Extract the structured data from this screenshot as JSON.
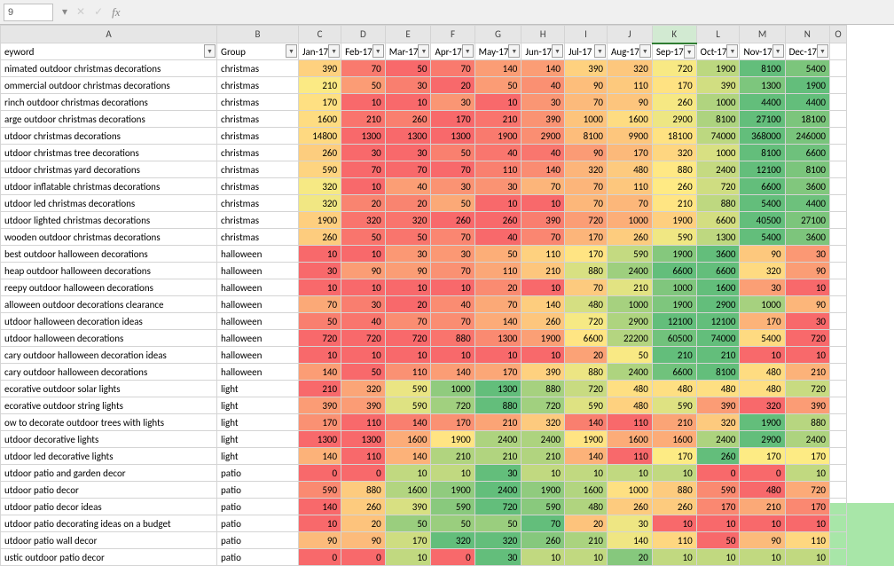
{
  "formula_bar": {
    "name_box": "9",
    "fx_label": "fx"
  },
  "col_letters": [
    "A",
    "B",
    "C",
    "D",
    "E",
    "F",
    "G",
    "H",
    "I",
    "J",
    "K",
    "L",
    "M",
    "N",
    "O"
  ],
  "selected_col": "K",
  "headers": {
    "keyword": "eyword",
    "group": "Group",
    "months": [
      "Jan-17",
      "Feb-17",
      "Mar-17",
      "Apr-17",
      "May-17",
      "Jun-17",
      "Jul-17",
      "Aug-17",
      "Sep-17",
      "Oct-17",
      "Nov-17",
      "Dec-17"
    ]
  },
  "heatmap_colors": {
    "stops": [
      {
        "t": 0.0,
        "c": "#f8696b"
      },
      {
        "t": 0.5,
        "c": "#ffeb84"
      },
      {
        "t": 1.0,
        "c": "#63be7b"
      }
    ]
  },
  "rows": [
    {
      "kw": "nimated outdoor christmas decorations",
      "grp": "christmas",
      "v": [
        390,
        70,
        50,
        70,
        140,
        140,
        390,
        320,
        720,
        1900,
        8100,
        5400
      ]
    },
    {
      "kw": "ommercial outdoor christmas decorations",
      "grp": "christmas",
      "v": [
        210,
        50,
        30,
        20,
        50,
        40,
        90,
        110,
        170,
        390,
        1300,
        1900
      ]
    },
    {
      "kw": "rinch outdoor christmas decorations",
      "grp": "christmas",
      "v": [
        170,
        10,
        10,
        30,
        10,
        30,
        70,
        90,
        260,
        1000,
        4400,
        4400
      ]
    },
    {
      "kw": "arge outdoor christmas decorations",
      "grp": "christmas",
      "v": [
        1600,
        210,
        260,
        170,
        210,
        390,
        1000,
        1600,
        2900,
        8100,
        27100,
        18100
      ]
    },
    {
      "kw": "utdoor christmas decorations",
      "grp": "christmas",
      "v": [
        14800,
        1300,
        1300,
        1300,
        1900,
        2900,
        8100,
        9900,
        18100,
        74000,
        368000,
        246000
      ]
    },
    {
      "kw": "utdoor christmas tree decorations",
      "grp": "christmas",
      "v": [
        260,
        30,
        30,
        50,
        40,
        40,
        90,
        170,
        320,
        1000,
        8100,
        6600
      ]
    },
    {
      "kw": "utdoor christmas yard decorations",
      "grp": "christmas",
      "v": [
        590,
        70,
        70,
        70,
        110,
        140,
        320,
        480,
        880,
        2400,
        12100,
        8100
      ]
    },
    {
      "kw": "utdoor inflatable christmas decorations",
      "grp": "christmas",
      "v": [
        320,
        10,
        40,
        30,
        30,
        70,
        70,
        110,
        260,
        720,
        6600,
        3600
      ]
    },
    {
      "kw": "utdoor led christmas decorations",
      "grp": "christmas",
      "v": [
        320,
        20,
        20,
        50,
        10,
        10,
        70,
        70,
        210,
        880,
        5400,
        4400
      ]
    },
    {
      "kw": "utdoor lighted christmas decorations",
      "grp": "christmas",
      "v": [
        1900,
        320,
        320,
        260,
        260,
        390,
        720,
        1000,
        1900,
        6600,
        40500,
        27100
      ]
    },
    {
      "kw": "wooden outdoor christmas decorations",
      "grp": "christmas",
      "v": [
        260,
        50,
        50,
        70,
        40,
        70,
        170,
        260,
        590,
        1300,
        5400,
        3600
      ]
    },
    {
      "kw": "best outdoor halloween decorations",
      "grp": "halloween",
      "v": [
        10,
        10,
        30,
        30,
        50,
        110,
        170,
        590,
        1900,
        3600,
        90,
        30
      ]
    },
    {
      "kw": "heap outdoor halloween decorations",
      "grp": "halloween",
      "v": [
        30,
        90,
        90,
        70,
        110,
        210,
        880,
        2400,
        6600,
        6600,
        320,
        90
      ]
    },
    {
      "kw": "reepy outdoor halloween decorations",
      "grp": "halloween",
      "v": [
        10,
        10,
        10,
        10,
        20,
        10,
        70,
        210,
        1000,
        1600,
        30,
        10
      ]
    },
    {
      "kw": "alloween outdoor decorations clearance",
      "grp": "halloween",
      "v": [
        70,
        30,
        20,
        40,
        70,
        140,
        480,
        1000,
        1900,
        2900,
        1000,
        90
      ]
    },
    {
      "kw": "utdoor halloween decoration ideas",
      "grp": "halloween",
      "v": [
        50,
        40,
        70,
        70,
        140,
        260,
        720,
        2900,
        12100,
        12100,
        170,
        30
      ]
    },
    {
      "kw": "utdoor halloween decorations",
      "grp": "halloween",
      "v": [
        720,
        720,
        720,
        880,
        1300,
        1900,
        6600,
        22200,
        60500,
        74000,
        5400,
        720
      ]
    },
    {
      "kw": "cary outdoor halloween decoration ideas",
      "grp": "halloween",
      "v": [
        10,
        10,
        10,
        10,
        10,
        10,
        20,
        50,
        210,
        210,
        10,
        10
      ]
    },
    {
      "kw": "cary outdoor halloween decorations",
      "grp": "halloween",
      "v": [
        140,
        50,
        110,
        140,
        170,
        390,
        880,
        2400,
        6600,
        8100,
        480,
        210
      ]
    },
    {
      "kw": "ecorative outdoor solar lights",
      "grp": "light",
      "v": [
        210,
        320,
        590,
        1000,
        1300,
        880,
        720,
        480,
        480,
        480,
        480,
        720
      ]
    },
    {
      "kw": "ecorative outdoor string lights",
      "grp": "light",
      "v": [
        390,
        390,
        590,
        720,
        880,
        720,
        590,
        480,
        590,
        390,
        320,
        390
      ]
    },
    {
      "kw": "ow to decorate outdoor trees with lights",
      "grp": "light",
      "v": [
        170,
        110,
        140,
        170,
        210,
        320,
        140,
        110,
        210,
        320,
        1900,
        880
      ]
    },
    {
      "kw": "utdoor decorative lights",
      "grp": "light",
      "v": [
        1300,
        1300,
        1600,
        1900,
        2400,
        2400,
        1900,
        1600,
        1600,
        2400,
        2900,
        2400
      ]
    },
    {
      "kw": "utdoor led decorative lights",
      "grp": "light",
      "v": [
        140,
        110,
        140,
        210,
        210,
        210,
        140,
        110,
        170,
        260,
        170,
        170
      ]
    },
    {
      "kw": "utdoor patio and garden decor",
      "grp": "patio",
      "v": [
        0,
        0,
        10,
        10,
        30,
        10,
        10,
        10,
        10,
        0,
        0,
        10
      ]
    },
    {
      "kw": "utdoor patio decor",
      "grp": "patio",
      "v": [
        590,
        880,
        1600,
        1900,
        2400,
        1900,
        1600,
        1000,
        880,
        590,
        480,
        720
      ]
    },
    {
      "kw": "utdoor patio decor ideas",
      "grp": "patio",
      "v": [
        140,
        260,
        390,
        590,
        720,
        590,
        480,
        260,
        260,
        170,
        210,
        170
      ]
    },
    {
      "kw": "utdoor patio decorating ideas on a budget",
      "grp": "patio",
      "v": [
        10,
        20,
        50,
        50,
        50,
        70,
        20,
        30,
        10,
        10,
        10,
        10
      ]
    },
    {
      "kw": "utdoor patio wall decor",
      "grp": "patio",
      "v": [
        90,
        90,
        170,
        320,
        320,
        260,
        210,
        140,
        110,
        50,
        90,
        110
      ]
    },
    {
      "kw": "ustic outdoor patio decor",
      "grp": "patio",
      "v": [
        0,
        0,
        10,
        0,
        30,
        10,
        10,
        20,
        10,
        10,
        10,
        10
      ]
    }
  ]
}
